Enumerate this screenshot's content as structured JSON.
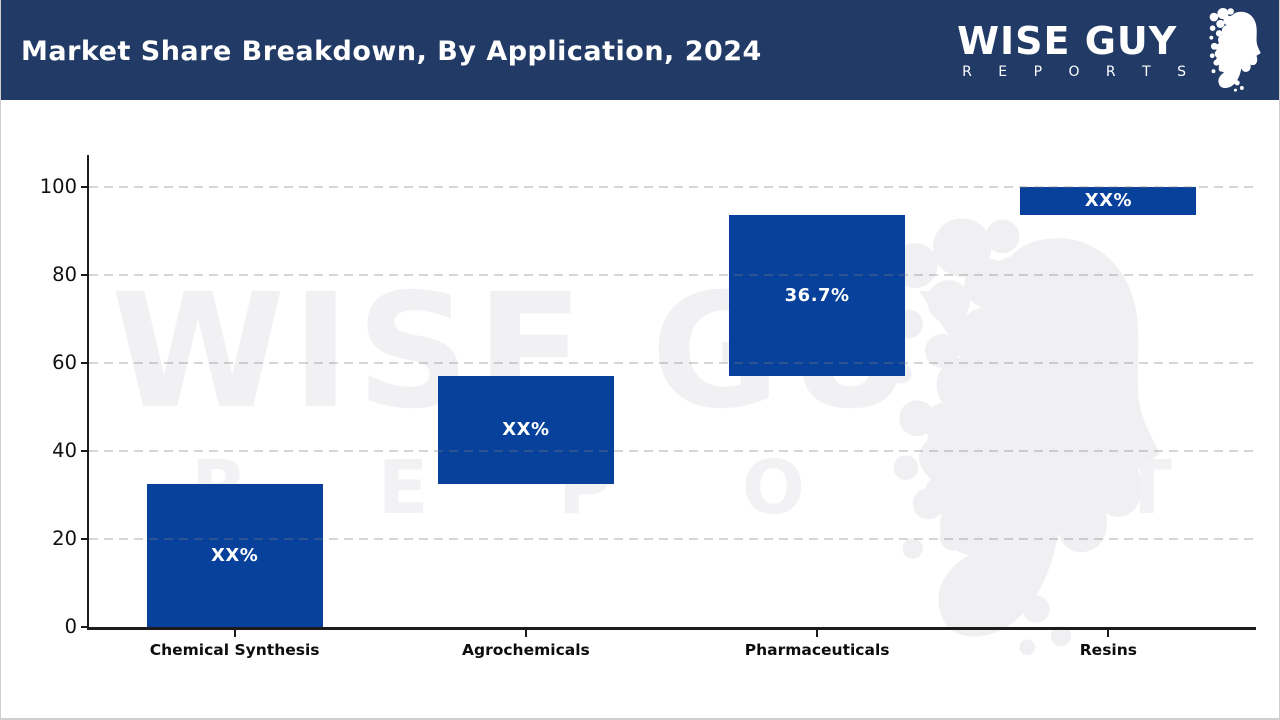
{
  "header": {
    "title": "Market Share Breakdown, By Application, 2024",
    "logo": {
      "line1": "WISE GUY",
      "line2": "R E P O R T S"
    }
  },
  "watermark": {
    "line1": "WISE GUY",
    "line2": "R E P O R T S"
  },
  "colors": {
    "header_bg": "#213A66",
    "bar": "#07419B",
    "watermark": "#F1F1F4",
    "axis": "#1C1C1C"
  },
  "chart_data": {
    "type": "bar",
    "subtype": "waterfall",
    "title": "Market Share Breakdown, By Application, 2024",
    "categories": [
      "Chemical Synthesis",
      "Agrochemicals",
      "Pharmaceuticals",
      "Resins"
    ],
    "bars": [
      {
        "category": "Chemical Synthesis",
        "start": 0,
        "end": 32.6,
        "label": "XX%"
      },
      {
        "category": "Agrochemicals",
        "start": 32.6,
        "end": 57.0,
        "label": "XX%"
      },
      {
        "category": "Pharmaceuticals",
        "start": 57.0,
        "end": 93.7,
        "label": "36.7%"
      },
      {
        "category": "Resins",
        "start": 93.7,
        "end": 100,
        "label": "XX%"
      }
    ],
    "ylim": [
      0,
      100
    ],
    "yticks": [
      0,
      20,
      40,
      60,
      80,
      100
    ],
    "xlabel": "",
    "ylabel": "",
    "bar_color": "#07419B",
    "grid": "dashed-horizontal",
    "legend": "none"
  }
}
